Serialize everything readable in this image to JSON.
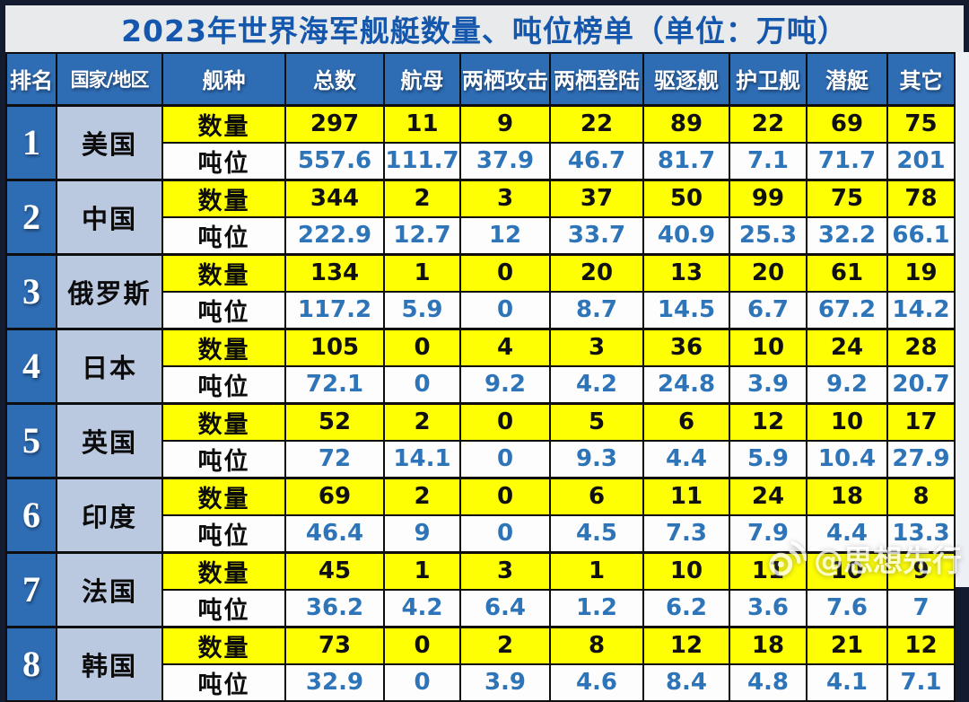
{
  "title": "2023年世界海军舰艇数量、吨位榜单（单位：万吨）",
  "watermark": {
    "handle": "@思想先行",
    "icon": "weibo-icon"
  },
  "colors": {
    "title_blue": "#1457ad",
    "header_blue": "#2e6cb4",
    "country_bg": "#bac9e0",
    "count_yellow": "#feff02",
    "tonnage_blue": "#2e74b8",
    "border_black": "#0e0e0e",
    "title_bg": "#e9eaeb"
  },
  "chart_data": {
    "type": "table",
    "title": "2023年世界海军舰艇数量、吨位榜单（单位：万吨）",
    "unit": "万吨",
    "columns": [
      "排名",
      "国家/地区",
      "舰种",
      "总数",
      "航母",
      "两栖攻击",
      "两栖登陆",
      "驱逐舰",
      "护卫舰",
      "潜艇",
      "其它"
    ],
    "row_labels": {
      "count": "数量",
      "tonnage": "吨位"
    },
    "rows": [
      {
        "rank": "1",
        "country": "美国",
        "count": [
          "297",
          "11",
          "9",
          "22",
          "89",
          "22",
          "69",
          "75"
        ],
        "tonnage": [
          "557.6",
          "111.7",
          "37.9",
          "46.7",
          "81.7",
          "7.1",
          "71.7",
          "201"
        ]
      },
      {
        "rank": "2",
        "country": "中国",
        "count": [
          "344",
          "2",
          "3",
          "37",
          "50",
          "99",
          "75",
          "78"
        ],
        "tonnage": [
          "222.9",
          "12.7",
          "12",
          "33.7",
          "40.9",
          "25.3",
          "32.2",
          "66.1"
        ]
      },
      {
        "rank": "3",
        "country": "俄罗斯",
        "count": [
          "134",
          "1",
          "0",
          "20",
          "13",
          "20",
          "61",
          "19"
        ],
        "tonnage": [
          "117.2",
          "5.9",
          "0",
          "8.7",
          "14.5",
          "6.7",
          "67.2",
          "14.2"
        ]
      },
      {
        "rank": "4",
        "country": "日本",
        "count": [
          "105",
          "0",
          "4",
          "3",
          "36",
          "10",
          "24",
          "28"
        ],
        "tonnage": [
          "72.1",
          "0",
          "9.2",
          "4.2",
          "24.8",
          "3.9",
          "9.2",
          "20.7"
        ]
      },
      {
        "rank": "5",
        "country": "英国",
        "count": [
          "52",
          "2",
          "0",
          "5",
          "6",
          "12",
          "10",
          "17"
        ],
        "tonnage": [
          "72",
          "14.1",
          "0",
          "9.3",
          "4.4",
          "5.9",
          "10.4",
          "27.9"
        ]
      },
      {
        "rank": "6",
        "country": "印度",
        "count": [
          "69",
          "2",
          "0",
          "6",
          "11",
          "24",
          "18",
          "8"
        ],
        "tonnage": [
          "46.4",
          "9",
          "0",
          "4.5",
          "7.3",
          "7.9",
          "4.4",
          "13.3"
        ]
      },
      {
        "rank": "7",
        "country": "法国",
        "count": [
          "45",
          "1",
          "3",
          "1",
          "10",
          "11",
          "10",
          "9"
        ],
        "tonnage": [
          "36.2",
          "4.2",
          "6.4",
          "1.2",
          "6.2",
          "3.6",
          "7.6",
          "7"
        ]
      },
      {
        "rank": "8",
        "country": "韩国",
        "count": [
          "73",
          "0",
          "2",
          "8",
          "12",
          "18",
          "21",
          "12"
        ],
        "tonnage": [
          "32.9",
          "0",
          "3.9",
          "4.6",
          "8.4",
          "4.8",
          "4.1",
          "7.1"
        ]
      }
    ]
  }
}
